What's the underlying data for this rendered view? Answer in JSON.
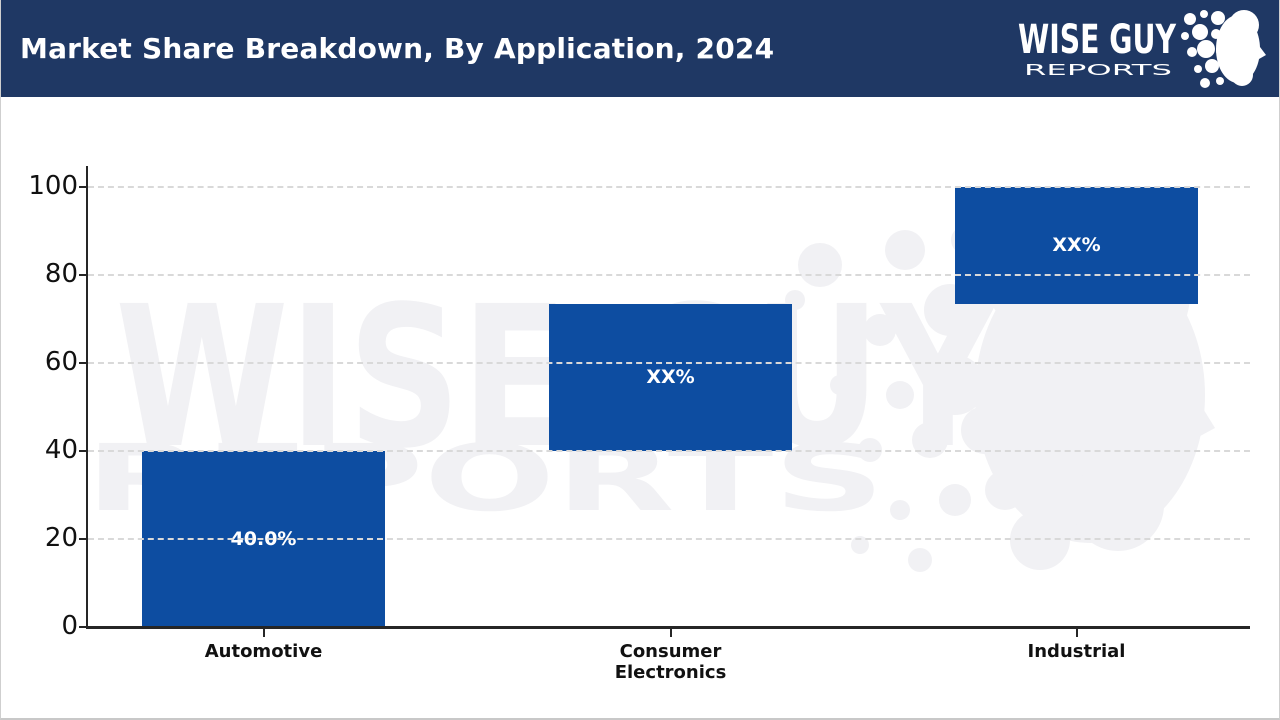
{
  "header": {
    "title": "Market Share Breakdown, By Application, 2024",
    "logo": {
      "line1": "WISE GUY",
      "line2": "REPORTS"
    }
  },
  "watermark": {
    "line1": "WISE GUY",
    "line2": "REPORTS"
  },
  "colors": {
    "header_bg": "#1F3864",
    "bar": "#0D4DA1",
    "grid": "#D9D9D9",
    "axis": "#262626",
    "tick": "#111111",
    "bar_label": "#FFFFFF",
    "watermark": "#F1F1F4"
  },
  "chart_data": {
    "type": "bar",
    "subtype": "waterfall",
    "title": "Market Share Breakdown, By Application, 2024",
    "categories": [
      "Automotive",
      "Consumer Electronics",
      "Industrial"
    ],
    "segments": [
      {
        "category": "Automotive",
        "start": 0,
        "end": 40,
        "value_label": "40.0%"
      },
      {
        "category": "Consumer Electronics",
        "start": 40,
        "end": 73.5,
        "value_label": "XX%"
      },
      {
        "category": "Industrial",
        "start": 73.5,
        "end": 100,
        "value_label": "XX%"
      }
    ],
    "xtick_label_lines": [
      [
        "Automotive"
      ],
      [
        "Consumer",
        "Electronics"
      ],
      [
        "Industrial"
      ]
    ],
    "ylim": [
      0,
      100
    ],
    "yticks": [
      0,
      20,
      40,
      60,
      80,
      100
    ],
    "grid": true,
    "grid_style": "dashed",
    "legend": false
  }
}
